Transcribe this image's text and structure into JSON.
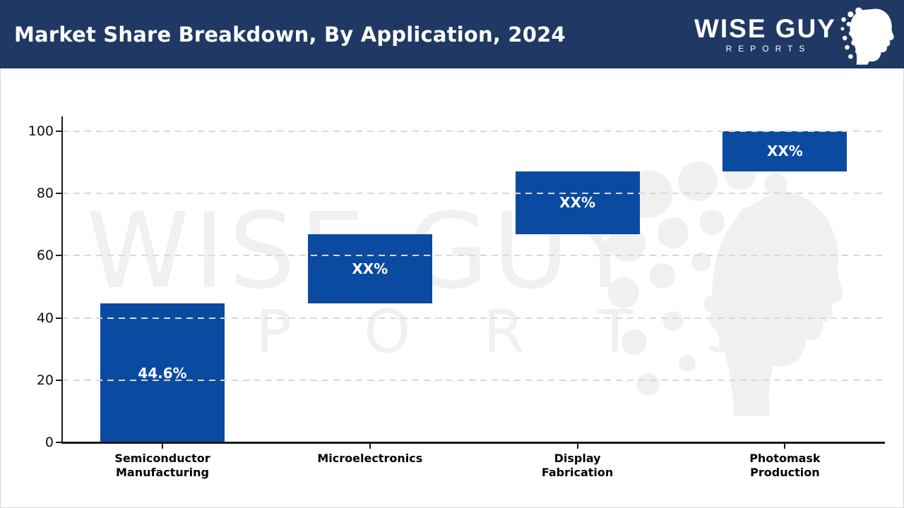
{
  "header": {
    "title": "Market Share Breakdown, By Application, 2024",
    "logo": {
      "line1": "WISE GUY",
      "line2": "REPORTS",
      "icon": "dotted-face-profile-icon"
    }
  },
  "watermark": {
    "line1": "WISE GUY",
    "line2": "P O R T S",
    "icon": "dotted-face-profile-watermark"
  },
  "colors": {
    "header_bg": "#1f3864",
    "bar": "#0b4aa1",
    "grid": "#d9d9d9",
    "axis": "#1a1a1a",
    "tick_text": "#111111",
    "category_text": "#000000",
    "watermark": "#f0f0f0",
    "canvas_border": "#d9d9d9"
  },
  "chart_data": {
    "type": "bar",
    "subtype": "floating-segment (waterfall style, cumulative share)",
    "title": "Market Share Breakdown, By Application, 2024",
    "categories": [
      "Semiconductor Manufacturing",
      "Microelectronics",
      "Display Fabrication",
      "Photomask Production"
    ],
    "category_label_lines": [
      [
        "Semiconductor",
        "Manufacturing"
      ],
      [
        "Microelectronics"
      ],
      [
        "Display",
        "Fabrication"
      ],
      [
        "Photomask",
        "Production"
      ]
    ],
    "segments": [
      {
        "category": "Semiconductor Manufacturing",
        "from": 0,
        "to": 44.6,
        "label": "44.6%",
        "share_estimate": 44.6
      },
      {
        "category": "Microelectronics",
        "from": 44.6,
        "to": 66.9,
        "label": "XX%",
        "share_estimate": 22.3
      },
      {
        "category": "Display Fabrication",
        "from": 66.9,
        "to": 87.1,
        "label": "XX%",
        "share_estimate": 20.2
      },
      {
        "category": "Photomask Production",
        "from": 87.1,
        "to": 100,
        "label": "XX%",
        "share_estimate": 12.9
      }
    ],
    "xlabel": "",
    "ylabel": "",
    "ylim": [
      0,
      100
    ],
    "yticks": [
      0,
      20,
      40,
      60,
      80,
      100
    ],
    "grid": "horizontal dashed, drawn above bars",
    "legend": "none"
  }
}
